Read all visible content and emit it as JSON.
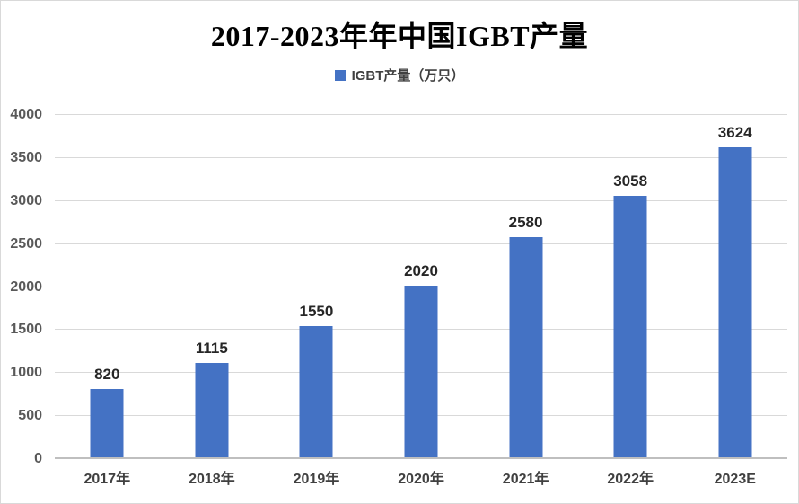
{
  "title": "2017-2023年年中国IGBT产量",
  "legend": {
    "label": "IGBT产量（万只）",
    "swatch_color": "#4472C4"
  },
  "chart_data": {
    "type": "bar",
    "title": "2017-2023年年中国IGBT产量",
    "categories": [
      "2017年",
      "2018年",
      "2019年",
      "2020年",
      "2021年",
      "2022年",
      "2023E"
    ],
    "values": [
      820,
      1115,
      1550,
      2020,
      2580,
      3058,
      3624
    ],
    "series_name": "IGBT产量（万只）",
    "xlabel": "",
    "ylabel": "",
    "ylim": [
      0,
      4000
    ],
    "yticks": [
      0,
      500,
      1000,
      1500,
      2000,
      2500,
      3000,
      3500,
      4000
    ],
    "grid": true,
    "data_labels": true,
    "legend_position": "top",
    "bar_color": "#4472C4",
    "gridline_color": "#d9d9d9",
    "axis_label_color": "#595959"
  }
}
